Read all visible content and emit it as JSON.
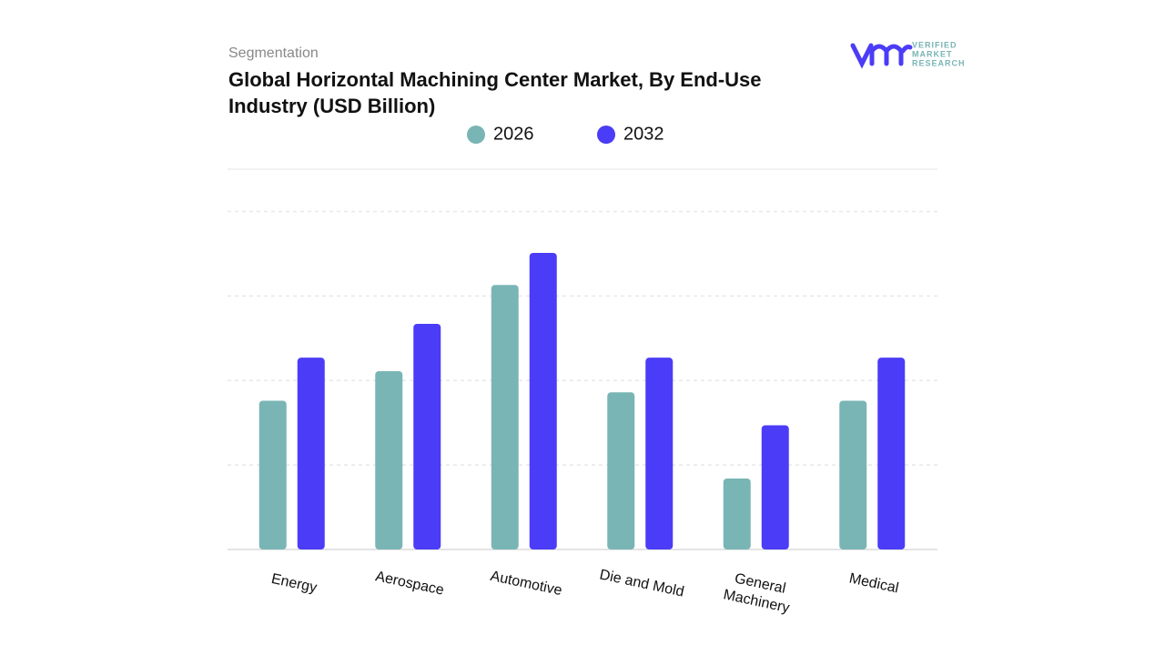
{
  "chart_data": {
    "type": "bar",
    "subtitle": "Segmentation",
    "title": "Global Horizontal Machining Center Market, By End-Use Industry (USD Billion)",
    "categories": [
      "Energy",
      "Aerospace",
      "Automotive",
      "Die and Mold",
      "General Machinery",
      "Medical"
    ],
    "series": [
      {
        "name": "2026",
        "color": "#7ab5b5",
        "values": [
          1.76,
          2.11,
          3.13,
          1.86,
          0.84,
          1.76
        ]
      },
      {
        "name": "2032",
        "color": "#4b3cf7",
        "values": [
          2.27,
          2.67,
          3.51,
          2.27,
          1.47,
          2.27
        ]
      }
    ],
    "ylim": [
      0,
      4.5
    ],
    "yticks": [
      1,
      2,
      3,
      4
    ],
    "grid": true
  },
  "brand": {
    "line1": "VERIFIED",
    "line2": "MARKET",
    "line3": "RESEARCH"
  }
}
